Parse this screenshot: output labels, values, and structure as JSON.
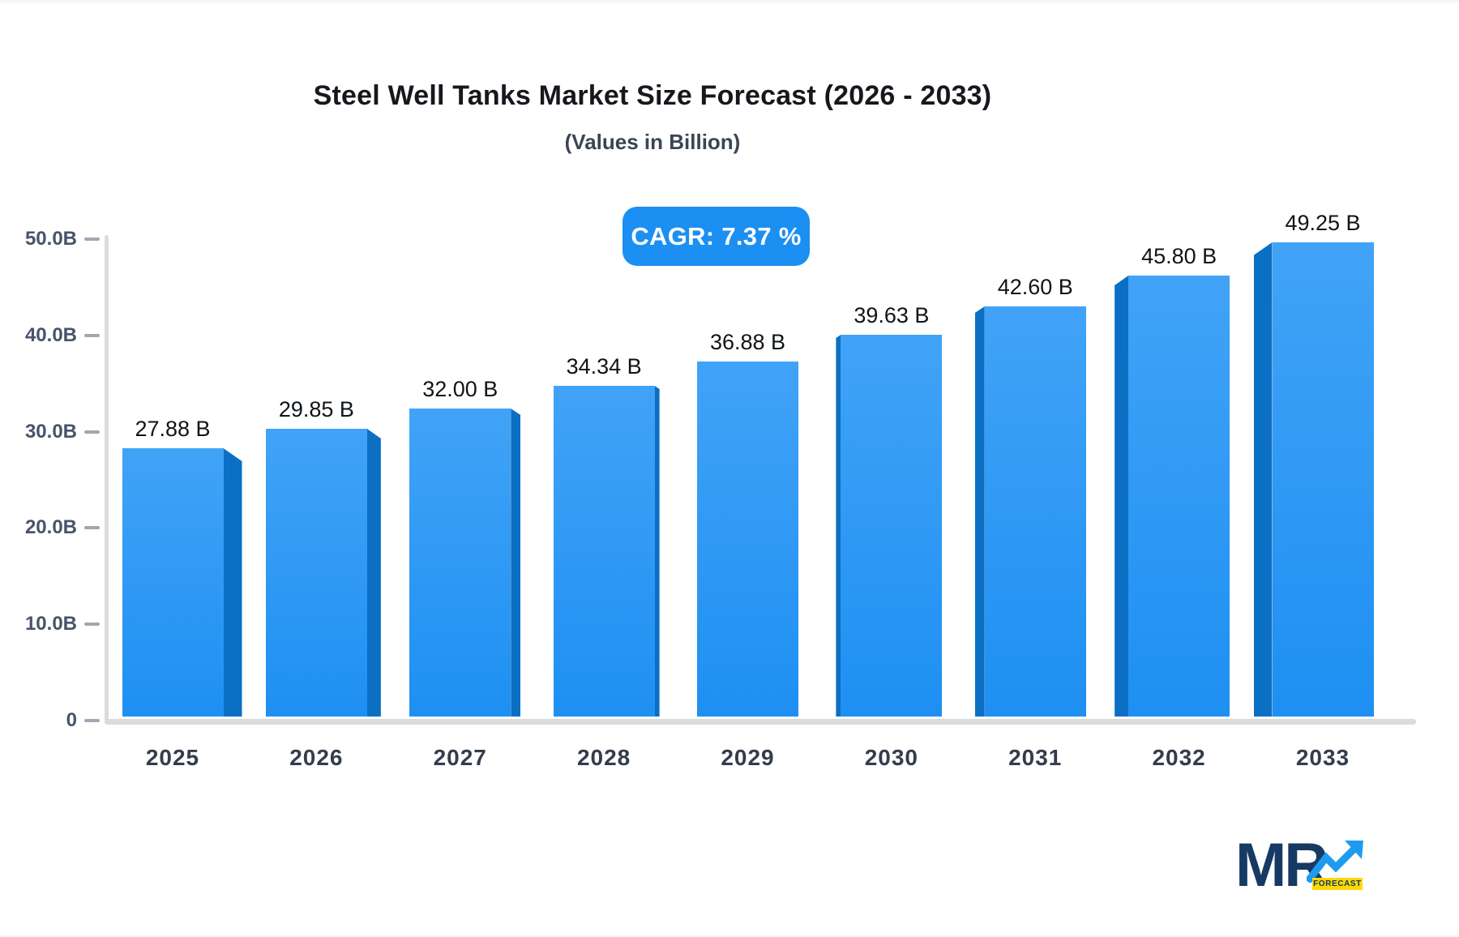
{
  "header": {
    "title": "Steel Well Tanks Market Size Forecast (2026 - 2033)",
    "subtitle": "(Values in Billion)"
  },
  "badge": {
    "label": "CAGR: 7.37 %"
  },
  "chart_data": {
    "type": "bar",
    "title": "Steel Well Tanks Market Size Forecast (2026 - 2033)",
    "subtitle": "(Values in Billion)",
    "categories": [
      "2025",
      "2026",
      "2027",
      "2028",
      "2029",
      "2030",
      "2031",
      "2032",
      "2033"
    ],
    "values": [
      27.88,
      29.85,
      32.0,
      34.34,
      36.88,
      39.63,
      42.6,
      45.8,
      49.25
    ],
    "value_labels": [
      "27.88 B",
      "29.85 B",
      "32.00 B",
      "34.34 B",
      "36.88 B",
      "39.63 B",
      "42.60 B",
      "45.80 B",
      "49.25 B"
    ],
    "unit": "Billion",
    "cagr": "7.37 %",
    "xlabel": "",
    "ylabel": "",
    "ylim": [
      0,
      50
    ],
    "grid": false,
    "legend": false,
    "y_ticks": [
      {
        "label": "0",
        "value": 0
      },
      {
        "label": "10.0B",
        "value": 10
      },
      {
        "label": "20.0B",
        "value": 20
      },
      {
        "label": "30.0B",
        "value": 30
      },
      {
        "label": "40.0B",
        "value": 40
      },
      {
        "label": "50.0B",
        "value": 50
      }
    ]
  },
  "colors": {
    "badge_bg": "#1b8ff2",
    "bar_face_top": "#41a3f7",
    "bar_face_bottom": "#1e90f2",
    "bar_side": "#0b6fc4",
    "axis_line": "#d9dcdf",
    "logo_navy": "#163a63",
    "logo_blue": "#1e9bf0",
    "logo_yellow": "#ffd803"
  },
  "logo": {
    "brand": "MR",
    "sub": "FORECAST"
  }
}
